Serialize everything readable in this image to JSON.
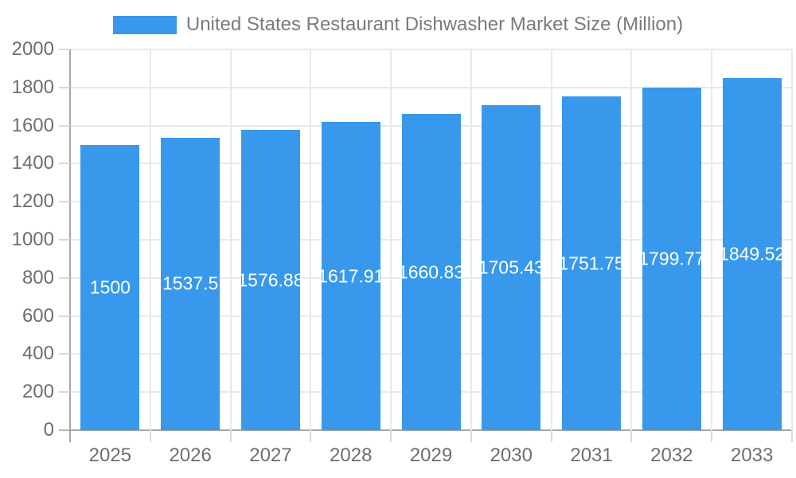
{
  "legend": {
    "position": "top",
    "swatch_icon": "legend-swatch"
  },
  "chart_data": {
    "type": "bar",
    "title": "United States Restaurant Dishwasher Market Size (Million)",
    "categories": [
      "2025",
      "2026",
      "2027",
      "2028",
      "2029",
      "2030",
      "2031",
      "2032",
      "2033"
    ],
    "values": [
      1500,
      1537.5,
      1576.88,
      1617.91,
      1660.83,
      1705.43,
      1751.75,
      1799.77,
      1849.52
    ],
    "value_labels": [
      "1500",
      "1537.5",
      "1576.88",
      "1617.91",
      "1660.83",
      "1705.43",
      "1751.75",
      "1799.77",
      "1849.52"
    ],
    "xlabel": "",
    "ylabel": "",
    "ylim": [
      0,
      2000
    ],
    "ytick_step": 200,
    "ytick_labels": [
      "0",
      "200",
      "400",
      "600",
      "800",
      "1000",
      "1200",
      "1400",
      "1600",
      "1800",
      "2000"
    ],
    "grid": true,
    "legend_position": "top",
    "bar_color": "#3899EC",
    "value_label_color": "#ffffff",
    "axis_text_color": "#6e6e6e",
    "gridline_color": "#e9e9e9",
    "axis_line_color": "#a7a7a7"
  }
}
